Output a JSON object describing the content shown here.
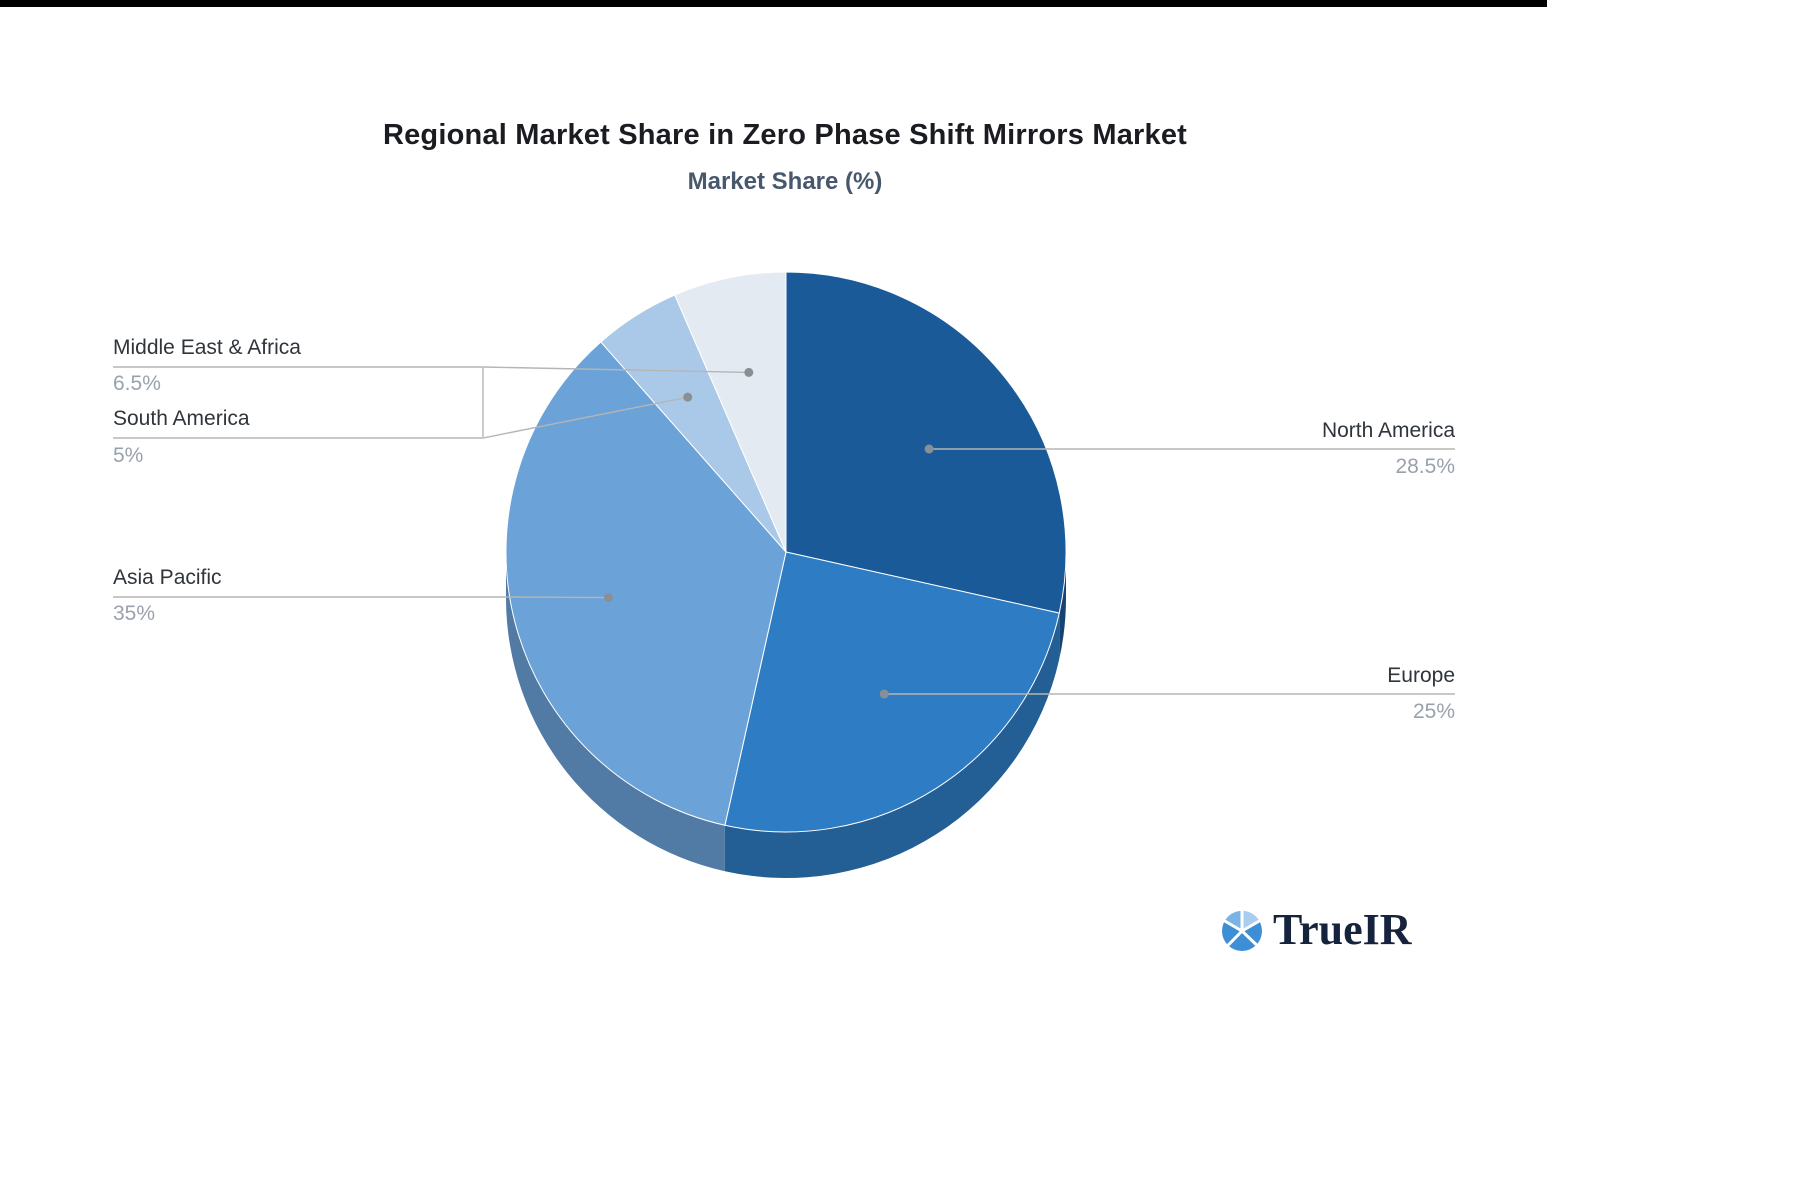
{
  "chart_data": {
    "type": "pie",
    "title": "Regional Market Share in Zero Phase Shift Mirrors Market",
    "subtitle": "Market Share (%)",
    "unit": "%",
    "start_angle_deg": 0,
    "direction": "clockwise",
    "effect": "3d-depth",
    "legend": "none",
    "labels_style": "outside-with-leader-lines",
    "leader_line_color": "#b5b5b5",
    "dot_color": "#8a8f96",
    "slices": [
      {
        "label": "North America",
        "value": 28.5,
        "display": "28.5%",
        "color": "#1b5a99"
      },
      {
        "label": "Europe",
        "value": 25,
        "display": "25%",
        "color": "#2e7cc3"
      },
      {
        "label": "Asia Pacific",
        "value": 35,
        "display": "35%",
        "color": "#6ba2d8"
      },
      {
        "label": "South America",
        "value": 5,
        "display": "5%",
        "color": "#aac9e8"
      },
      {
        "label": "Middle East & Africa",
        "value": 6.5,
        "display": "6.5%",
        "color": "#e4eaf1"
      }
    ]
  },
  "brand": {
    "name": "TrueIR",
    "text_color": "#16233d",
    "icon_color": "#3e8ed6"
  }
}
